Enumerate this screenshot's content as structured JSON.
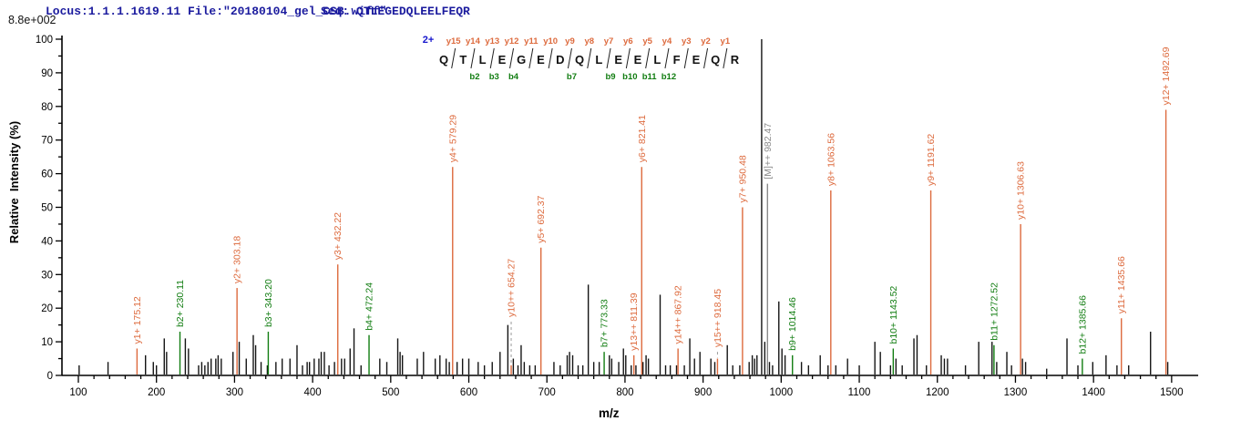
{
  "header": {
    "locus_line": "Locus:1.1.1.1619.11 File:\"20180104_gel_CSB.wiff\"",
    "seq_label": "Seq:",
    "seq_value": "QTLEGEDQLEELFEQR",
    "max_intensity": "8.8e+002"
  },
  "colors": {
    "y_ion": "#dd6a3d",
    "b_ion": "#117d11",
    "precursor": "#8a8a8a",
    "peak": "#141414",
    "axis": "#000000",
    "header_text": "#1b1b9e",
    "charge_text": "#1515cc",
    "sequence_text": "#111111"
  },
  "chart_data": {
    "type": "bar",
    "subtype": "mass-spectrum",
    "title": "",
    "xlabel": "m/z",
    "ylabel": "Relative  Intensity (%)",
    "xlim": [
      79,
      1534
    ],
    "ylim": [
      0,
      100
    ],
    "x_major_ticks": [
      100,
      200,
      300,
      400,
      500,
      600,
      700,
      800,
      900,
      1000,
      1100,
      1200,
      1300,
      1400,
      1500
    ],
    "x_minor_step": 20,
    "y_major_ticks": [
      0,
      10,
      20,
      30,
      40,
      50,
      60,
      70,
      80,
      90,
      100
    ],
    "y_minor_step": 5,
    "grid": false,
    "precursor_charge": "2+",
    "sequence_letters": [
      "Q",
      "T",
      "L",
      "E",
      "G",
      "E",
      "D",
      "Q",
      "L",
      "E",
      "E",
      "L",
      "F",
      "E",
      "Q",
      "R"
    ],
    "y_ion_labels": [
      "y15",
      "y14",
      "y13",
      "y12",
      "y11",
      "y10",
      "y9",
      "y8",
      "y7",
      "y6",
      "y5",
      "y4",
      "y3",
      "y2",
      "y1"
    ],
    "b_ion_labels": [
      {
        "pos": 2,
        "label": "b2"
      },
      {
        "pos": 3,
        "label": "b3"
      },
      {
        "pos": 4,
        "label": "b4"
      },
      {
        "pos": 7,
        "label": "b7"
      },
      {
        "pos": 9,
        "label": "b9"
      },
      {
        "pos": 10,
        "label": "b10"
      },
      {
        "pos": 11,
        "label": "b11"
      },
      {
        "pos": 12,
        "label": "b12"
      }
    ],
    "annotated_peaks": [
      {
        "label": "y1+ 175.12",
        "mz": 175.12,
        "intensity": 8,
        "type": "y"
      },
      {
        "label": "b2+ 230.11",
        "mz": 230.11,
        "intensity": 13,
        "type": "b"
      },
      {
        "label": "y2+ 303.18",
        "mz": 303.18,
        "intensity": 26,
        "type": "y"
      },
      {
        "label": "b3+ 343.20",
        "mz": 343.2,
        "intensity": 13,
        "type": "b"
      },
      {
        "label": "y3+ 432.22",
        "mz": 432.22,
        "intensity": 33,
        "type": "y"
      },
      {
        "label": "b4+ 472.24",
        "mz": 472.24,
        "intensity": 12,
        "type": "b"
      },
      {
        "label": "y4+ 579.29",
        "mz": 579.29,
        "intensity": 62,
        "type": "y"
      },
      {
        "label": "y10++ 654.27",
        "mz": 654.27,
        "intensity": 3,
        "label_at": 16,
        "dashed": true,
        "type": "y"
      },
      {
        "label": "y5+ 692.37",
        "mz": 692.37,
        "intensity": 38,
        "type": "y"
      },
      {
        "label": "b7+ 773.33",
        "mz": 773.33,
        "intensity": 7,
        "type": "b"
      },
      {
        "label": "y13++ 811.39",
        "mz": 811.39,
        "intensity": 6,
        "type": "y"
      },
      {
        "label": "y6+ 821.41",
        "mz": 821.41,
        "intensity": 62,
        "type": "y"
      },
      {
        "label": "y14++ 867.92",
        "mz": 867.92,
        "intensity": 8,
        "type": "y"
      },
      {
        "label": "y15++ 918.45",
        "mz": 918.45,
        "intensity": 5,
        "label_at": 7,
        "dashed": true,
        "type": "y"
      },
      {
        "label": "y7+ 950.48",
        "mz": 950.48,
        "intensity": 50,
        "type": "y"
      },
      {
        "label": "[M]++ 982.47",
        "mz": 982.47,
        "intensity": 57,
        "type": "precursor"
      },
      {
        "label": "b9+ 1014.46",
        "mz": 1014.46,
        "intensity": 6,
        "type": "b"
      },
      {
        "label": "y8+ 1063.56",
        "mz": 1063.56,
        "intensity": 55,
        "type": "y"
      },
      {
        "label": "b10+ 1143.52",
        "mz": 1143.52,
        "intensity": 8,
        "type": "b"
      },
      {
        "label": "y9+ 1191.62",
        "mz": 1191.62,
        "intensity": 55,
        "type": "y"
      },
      {
        "label": "b11+ 1272.52",
        "mz": 1272.52,
        "intensity": 9,
        "type": "b"
      },
      {
        "label": "y10+ 1306.63",
        "mz": 1306.63,
        "intensity": 45,
        "type": "y"
      },
      {
        "label": "b12+ 1385.66",
        "mz": 1385.66,
        "intensity": 5,
        "type": "b"
      },
      {
        "label": "y11+ 1435.66",
        "mz": 1435.66,
        "intensity": 17,
        "type": "y"
      },
      {
        "label": "y12+ 1492.69",
        "mz": 1492.69,
        "intensity": 79,
        "type": "y"
      }
    ],
    "noise_peaks": [
      [
        101,
        3
      ],
      [
        138,
        4
      ],
      [
        186,
        6
      ],
      [
        196,
        4
      ],
      [
        200,
        3
      ],
      [
        210,
        11
      ],
      [
        213,
        7
      ],
      [
        237,
        11
      ],
      [
        241,
        8
      ],
      [
        254,
        3
      ],
      [
        258,
        4
      ],
      [
        262,
        3
      ],
      [
        266,
        4
      ],
      [
        270,
        5
      ],
      [
        276,
        5
      ],
      [
        279,
        6
      ],
      [
        283,
        5
      ],
      [
        298,
        7
      ],
      [
        306,
        10
      ],
      [
        315,
        5
      ],
      [
        324,
        12
      ],
      [
        327,
        9
      ],
      [
        334,
        4
      ],
      [
        342,
        3
      ],
      [
        353,
        4
      ],
      [
        361,
        5
      ],
      [
        371,
        5
      ],
      [
        380,
        9
      ],
      [
        387,
        3
      ],
      [
        393,
        4
      ],
      [
        396,
        4
      ],
      [
        402,
        5
      ],
      [
        408,
        5
      ],
      [
        411,
        7
      ],
      [
        415,
        7
      ],
      [
        421,
        3
      ],
      [
        428,
        4
      ],
      [
        437,
        5
      ],
      [
        441,
        5
      ],
      [
        448,
        8
      ],
      [
        453,
        14
      ],
      [
        462,
        3
      ],
      [
        486,
        5
      ],
      [
        495,
        4
      ],
      [
        509,
        11
      ],
      [
        512,
        7
      ],
      [
        515,
        6
      ],
      [
        534,
        5
      ],
      [
        542,
        7
      ],
      [
        557,
        5
      ],
      [
        563,
        6
      ],
      [
        571,
        5
      ],
      [
        575,
        4
      ],
      [
        585,
        4
      ],
      [
        592,
        5
      ],
      [
        600,
        5
      ],
      [
        612,
        4
      ],
      [
        620,
        3
      ],
      [
        630,
        4
      ],
      [
        640,
        7
      ],
      [
        650,
        15
      ],
      [
        657,
        5
      ],
      [
        663,
        3
      ],
      [
        667,
        9
      ],
      [
        671,
        4
      ],
      [
        678,
        3
      ],
      [
        685,
        3
      ],
      [
        709,
        4
      ],
      [
        717,
        3
      ],
      [
        726,
        6
      ],
      [
        729,
        7
      ],
      [
        733,
        6
      ],
      [
        740,
        3
      ],
      [
        746,
        3
      ],
      [
        753,
        27
      ],
      [
        760,
        4
      ],
      [
        767,
        4
      ],
      [
        780,
        6
      ],
      [
        783,
        5
      ],
      [
        792,
        4
      ],
      [
        798,
        8
      ],
      [
        801,
        6
      ],
      [
        808,
        3
      ],
      [
        814,
        3
      ],
      [
        823,
        4
      ],
      [
        827,
        6
      ],
      [
        830,
        5
      ],
      [
        845,
        24
      ],
      [
        852,
        3
      ],
      [
        858,
        3
      ],
      [
        866,
        3
      ],
      [
        876,
        3
      ],
      [
        883,
        11
      ],
      [
        889,
        5
      ],
      [
        896,
        7
      ],
      [
        910,
        5
      ],
      [
        915,
        4
      ],
      [
        931,
        9
      ],
      [
        938,
        3
      ],
      [
        947,
        3
      ],
      [
        959,
        4
      ],
      [
        963,
        6
      ],
      [
        966,
        5
      ],
      [
        969,
        6
      ],
      [
        975,
        100
      ],
      [
        979,
        10
      ],
      [
        985,
        4
      ],
      [
        989,
        3
      ],
      [
        997,
        22
      ],
      [
        1001,
        8
      ],
      [
        1005,
        6
      ],
      [
        1026,
        4
      ],
      [
        1035,
        3
      ],
      [
        1050,
        6
      ],
      [
        1060,
        3
      ],
      [
        1070,
        3
      ],
      [
        1085,
        5
      ],
      [
        1100,
        3
      ],
      [
        1120,
        10
      ],
      [
        1127,
        7
      ],
      [
        1140,
        3
      ],
      [
        1147,
        5
      ],
      [
        1155,
        3
      ],
      [
        1170,
        11
      ],
      [
        1174,
        12
      ],
      [
        1186,
        3
      ],
      [
        1205,
        6
      ],
      [
        1209,
        5
      ],
      [
        1213,
        5
      ],
      [
        1236,
        3
      ],
      [
        1253,
        10
      ],
      [
        1270,
        10
      ],
      [
        1276,
        4
      ],
      [
        1289,
        7
      ],
      [
        1295,
        3
      ],
      [
        1309,
        5
      ],
      [
        1313,
        4
      ],
      [
        1340,
        2
      ],
      [
        1366,
        11
      ],
      [
        1380,
        3
      ],
      [
        1399,
        4
      ],
      [
        1416,
        6
      ],
      [
        1430,
        3
      ],
      [
        1445,
        3
      ],
      [
        1473,
        13
      ],
      [
        1495,
        4
      ]
    ]
  }
}
